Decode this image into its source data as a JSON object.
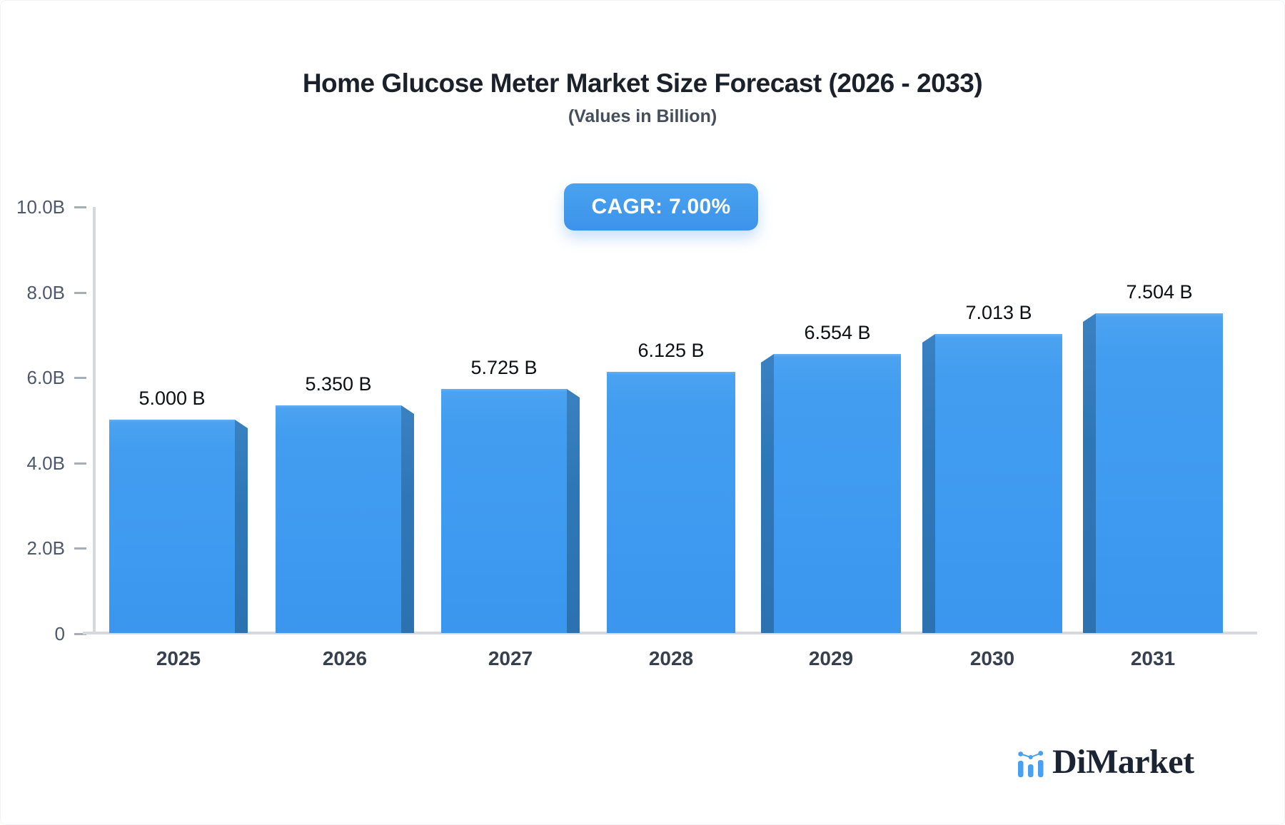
{
  "title": "Home Glucose Meter Market Size Forecast (2026 - 2033)",
  "subtitle": "(Values in Billion)",
  "cagr_badge": "CAGR: 7.00%",
  "logo": {
    "name": "DiMarket"
  },
  "colors": {
    "bar_face": "#3f9bf0",
    "bar_side": "#2e77b6",
    "badge_bg": "#3e96eb",
    "axis_line": "#d5d8dd",
    "logo_navy": "#1b2433",
    "logo_blue": "#4aa0f0"
  },
  "chart_data": {
    "type": "bar",
    "title": "Home Glucose Meter Market Size Forecast (2026 - 2033)",
    "subtitle": "(Values in Billion)",
    "annotation": "CAGR: 7.00%",
    "categories": [
      "2025",
      "2026",
      "2027",
      "2028",
      "2029",
      "2030",
      "2031"
    ],
    "values": [
      5.0,
      5.35,
      5.725,
      6.125,
      6.554,
      7.013,
      7.504
    ],
    "value_labels": [
      "5.000 B",
      "5.350 B",
      "5.725 B",
      "6.125 B",
      "6.554 B",
      "7.013 B",
      "7.504 B"
    ],
    "y_ticks": [
      "10.0B",
      "8.0B",
      "6.0B",
      "4.0B",
      "2.0B",
      "0"
    ],
    "ylim": [
      0,
      10
    ],
    "grid": false,
    "legend": null,
    "bar_style": "3d-perspective"
  }
}
